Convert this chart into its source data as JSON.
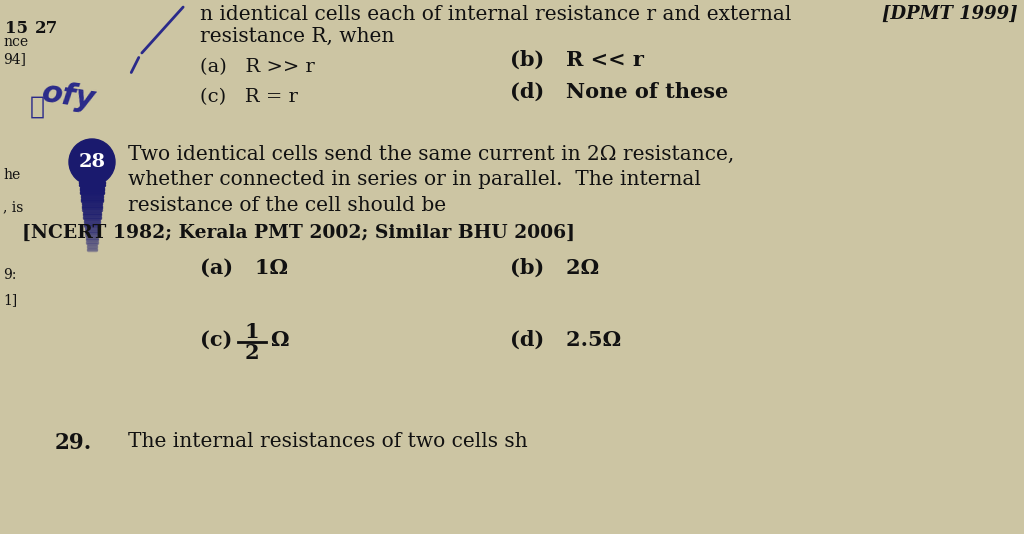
{
  "bg_color": "#ccc5a3",
  "text_color": "#111111",
  "dark_text": "#0a0a0a",
  "fig_width": 10.24,
  "fig_height": 5.34,
  "top_line1": "n identical cells each of internal resistance r and external",
  "top_line2": "resistance R, when",
  "dpmt_tag": "[DPMT 1999]",
  "q27_a": "(a)   R >> r",
  "q27_b": "(b)   R << r",
  "q27_c": "(c)   R = r",
  "q27_d": "(d)   None of these",
  "q28_num": "28",
  "q28_line1": "Two identical cells send the same current in 2Ω resistance,",
  "q28_line2": "whether connected in series or in parallel.  The internal",
  "q28_line3": "resistance of the cell should be",
  "q28_tag": "[NCERT 1982; Kerala PMT 2002; Similar BHU 2006]",
  "q28_a": "(a)   1Ω",
  "q28_b": "(b)   2Ω",
  "q28_c": "(c)  ",
  "q28_d": "(d)   2.5Ω",
  "q29_num": "29.",
  "q29_text": "The internal resistances of two cells sh",
  "num15": "15",
  "num27": "27",
  "lbl_nce": "nce",
  "lbl_94": "94]",
  "lbl_is": ", is",
  "lbl_he": "he",
  "lbl_9": "9:",
  "lbl_1": "1]",
  "circle_color": "#1a1a6e",
  "tail_color": "#1a1a6e",
  "annot_color": "#2a2a8a"
}
